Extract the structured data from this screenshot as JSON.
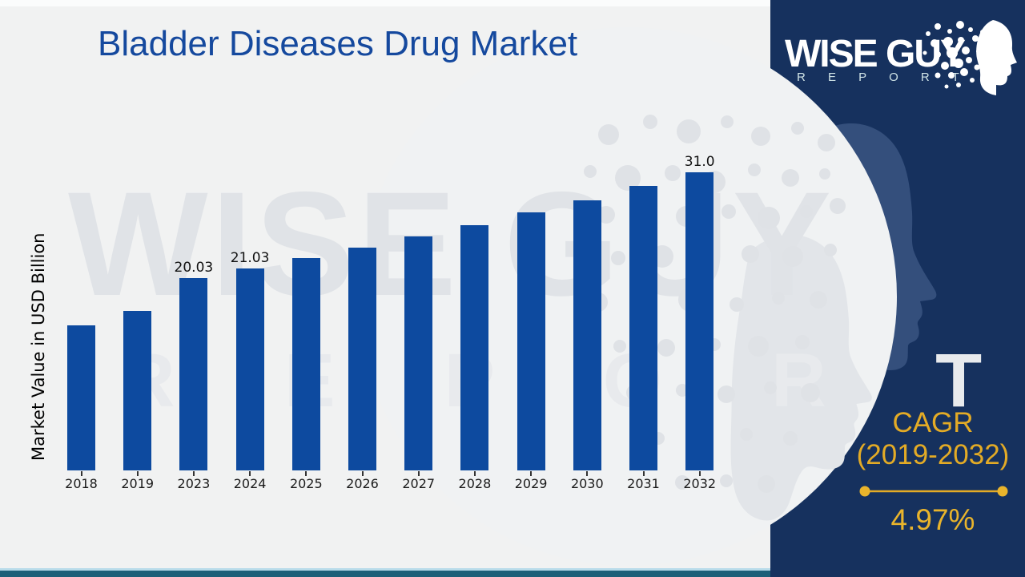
{
  "header": {
    "title": "Bladder Diseases Drug Market"
  },
  "axes": {
    "y_label": "Market Value in USD Billion"
  },
  "watermark": {
    "line1": "WISE GUY",
    "line2": "R E P O R T S"
  },
  "brand": {
    "logo_line1": "WISE GUY",
    "logo_line2": "R E P O R T S",
    "cagr_heading": "CAGR",
    "cagr_range": "(2019-2032)",
    "cagr_value": "4.97%"
  },
  "colors": {
    "bar_blue": "#0d4a9f",
    "title_blue": "#15499e",
    "panel_navy": "#16315e",
    "panel_face_blue": "#344f7c",
    "gold": "#e3ab26",
    "footer_teal": "#1c5f78",
    "background": "#f1f2f2"
  },
  "chart_data": {
    "type": "bar",
    "title": "Bladder Diseases Drug Market",
    "xlabel": "",
    "ylabel": "Market Value in USD Billion",
    "categories": [
      "2018",
      "2019",
      "2023",
      "2024",
      "2025",
      "2026",
      "2027",
      "2028",
      "2029",
      "2030",
      "2031",
      "2032"
    ],
    "values": [
      15.1,
      16.6,
      20.03,
      21.03,
      22.05,
      23.15,
      24.3,
      25.5,
      26.8,
      28.1,
      29.6,
      31.0
    ],
    "visible_value_labels": {
      "2023": "20.03",
      "2024": "21.03",
      "2032": "31.0"
    },
    "bar_color": "#0d4a9f",
    "ylim": [
      0,
      33.5
    ],
    "grid": false,
    "legend": null
  }
}
